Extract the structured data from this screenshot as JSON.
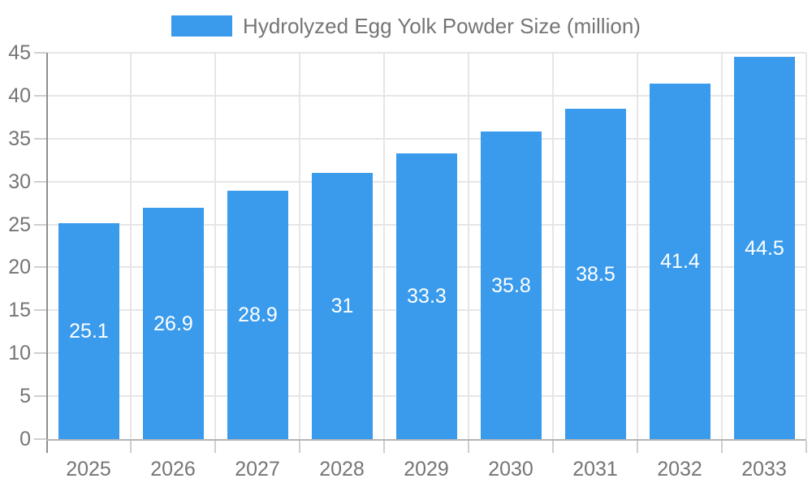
{
  "chart_data": {
    "type": "bar",
    "title": "Hydrolyzed Egg Yolk Powder Size (million)",
    "categories": [
      "2025",
      "2026",
      "2027",
      "2028",
      "2029",
      "2030",
      "2031",
      "2032",
      "2033"
    ],
    "values": [
      25.1,
      26.9,
      28.9,
      31,
      33.3,
      35.8,
      38.5,
      41.4,
      44.5
    ],
    "series": [
      {
        "name": "Hydrolyzed Egg Yolk Powder Size (million)",
        "values": [
          25.1,
          26.9,
          28.9,
          31,
          33.3,
          35.8,
          38.5,
          41.4,
          44.5
        ]
      }
    ],
    "xlabel": "",
    "ylabel": "",
    "ylim": [
      0,
      45
    ],
    "ytick_step": 5,
    "yticks": [
      0,
      5,
      10,
      15,
      20,
      25,
      30,
      35,
      40,
      45
    ],
    "grid": true,
    "legend_position": "top",
    "bar_labels_inside": true,
    "colors": {
      "bar": "#3a9bec",
      "bar_label": "#ffffff",
      "axis_text": "#757575",
      "gridline": "#e6e6e6",
      "tick": "#cfcfcf",
      "y_axis_line": "#8f8f8f",
      "x_axis_line": "#b5b5b5",
      "background": "#ffffff"
    }
  }
}
